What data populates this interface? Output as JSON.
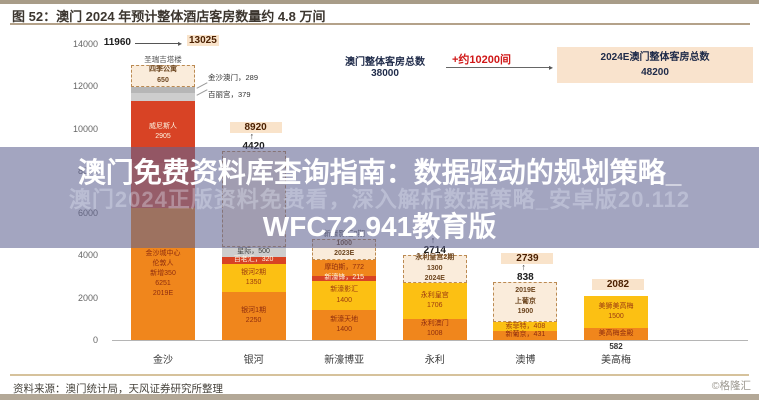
{
  "header": {
    "figure_title": "图 52：澳门 2024 年预计整体酒店客房数量约 4.8 万间"
  },
  "overlay": {
    "line1": "澳门免费资料库查询指南：数据驱动的规划策略_",
    "line2": "WFC72.941教育版",
    "faded": "澳门2024正版资料免费看，深入解析数据策略_安卓版20.112"
  },
  "summary": {
    "current_label": "澳门整体客房总数",
    "current_value": "38000",
    "delta": "+约10200间",
    "future_label": "2024E澳门整体客房总数",
    "future_value": "48200"
  },
  "icons": {
    "arrow_up": "↑",
    "arrow_right": "▸"
  },
  "colors": {
    "orange": "#f0861c",
    "yellow": "#fcc013",
    "red": "#d84325",
    "red2": "#df5330",
    "grey1": "#b6b6b6",
    "grey2": "#cdcdcd",
    "highlight_bg": "#f9e3ca",
    "delta_red": "#d01818"
  },
  "chart_data": {
    "type": "bar",
    "subtype": "stacked-with-planned-additions",
    "title": "图 52：澳门 2024 年预计整体酒店客房数量约 4.8 万间",
    "ylabel": "",
    "ylim": [
      0,
      14000
    ],
    "y_ticks": [
      14000,
      12000,
      10000,
      8000,
      6000,
      4000,
      2000,
      0
    ],
    "categories": [
      "金沙",
      "银河",
      "新濠博亚",
      "永利",
      "澳博",
      "美高梅"
    ],
    "bars": [
      {
        "category": "金沙",
        "current_total": "11960",
        "future_total": "13025",
        "arrow": "horizontal",
        "above_label": "圣瑞吉塔楼",
        "dashed": {
          "value": 1065,
          "lines": [
            "四季公寓",
            "650"
          ]
        },
        "segments": [
          {
            "value": 289,
            "color": "grey1",
            "lines": [],
            "callout": "金沙澳门，289"
          },
          {
            "value": 379,
            "color": "grey2",
            "lines": [],
            "callout": "百丽宫，379"
          },
          {
            "value": 2905,
            "color": "red",
            "lines": [
              "威尼斯人",
              "2905"
            ]
          },
          {
            "value": 2136,
            "color": "red2",
            "lines": []
          },
          {
            "value": 6251,
            "color": "orange",
            "lines": [
              "金沙城中心",
              "伦敦人",
              "新增350",
              "6251",
              "2019E"
            ]
          }
        ]
      },
      {
        "category": "银河",
        "current_total": "4420",
        "future_total": "8920",
        "arrow": "vertical",
        "dashed": {
          "value": 4500,
          "lines": []
        },
        "segments": [
          {
            "value": 500,
            "color": "grey2",
            "lines": [
              "星际，500"
            ]
          },
          {
            "value": 320,
            "color": "red",
            "lines": [
              "百老汇，320"
            ]
          },
          {
            "value": 1350,
            "color": "yellow",
            "lines": [
              "银河2期",
              "1350"
            ]
          },
          {
            "value": 2250,
            "color": "orange",
            "lines": [
              "银河1期",
              "2250"
            ]
          }
        ]
      },
      {
        "category": "新濠博亚",
        "arrow": "none",
        "above_label": "新濠影汇2期",
        "dashed": {
          "value": 1000,
          "lines": [
            "1000",
            "2023E"
          ]
        },
        "segments": [
          {
            "value": 772,
            "color": "orange",
            "lines": [
              "摩珀斯，772"
            ]
          },
          {
            "value": 215,
            "color": "red",
            "lines": [
              "新濠锋，215"
            ]
          },
          {
            "value": 1400,
            "color": "yellow",
            "lines": [
              "新濠影汇",
              "1400"
            ]
          },
          {
            "value": 1400,
            "color": "orange",
            "lines": [
              "新濠天地",
              "1400"
            ]
          }
        ]
      },
      {
        "category": "永利",
        "current_total": "2714",
        "arrow": "vertical",
        "dashed": {
          "value": 1300,
          "lines": [
            "永利皇宫2期",
            "1300",
            "2024E"
          ]
        },
        "segments": [
          {
            "value": 1706,
            "color": "yellow",
            "lines": [
              "永利皇宫",
              "1706"
            ]
          },
          {
            "value": 1008,
            "color": "orange",
            "lines": [
              "永利澳门",
              "1008"
            ]
          }
        ]
      },
      {
        "category": "澳博",
        "current_total": "838",
        "future_total": "2739",
        "arrow": "vertical",
        "dashed": {
          "value": 1900,
          "lines": [
            "2019E",
            "上葡京",
            "1900"
          ]
        },
        "segments": [
          {
            "value": 408,
            "color": "yellow",
            "lines": [
              "索菲特，408"
            ]
          },
          {
            "value": 431,
            "color": "orange",
            "lines": [
              "新葡京，431"
            ]
          }
        ]
      },
      {
        "category": "美高梅",
        "future_total": "2082",
        "arrow": "none",
        "below_value": "582",
        "segments": [
          {
            "value": 1500,
            "color": "yellow",
            "lines": [
              "美狮美高梅",
              "1500"
            ]
          },
          {
            "value": 582,
            "color": "orange",
            "lines": [
              "美高梅金殿"
            ]
          }
        ]
      }
    ]
  },
  "footer": {
    "source": "资料来源：澳门统计局，天风证券研究所整理",
    "watermark": "©格隆汇"
  }
}
